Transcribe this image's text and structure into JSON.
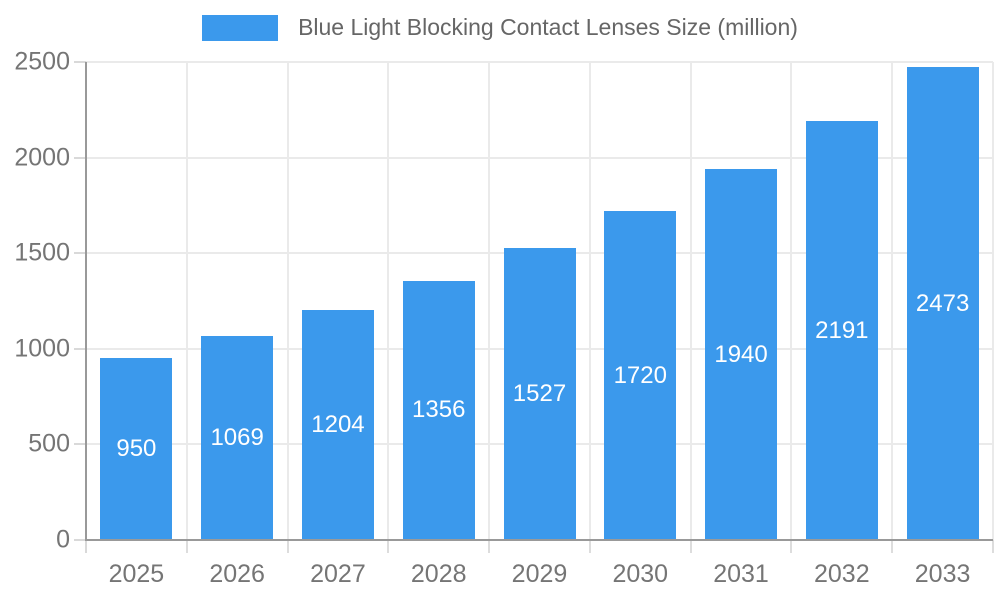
{
  "legend": {
    "label": "Blue Light Blocking Contact Lenses Size (million)"
  },
  "chart_data": {
    "type": "bar",
    "title": "Blue Light Blocking Contact Lenses Size (million)",
    "categories": [
      "2025",
      "2026",
      "2027",
      "2028",
      "2029",
      "2030",
      "2031",
      "2032",
      "2033"
    ],
    "values": [
      950,
      1069,
      1204,
      1356,
      1527,
      1720,
      1940,
      2191,
      2473
    ],
    "xlabel": "",
    "ylabel": "",
    "ylim": [
      0,
      2500
    ],
    "yticks": [
      0,
      500,
      1000,
      1500,
      2000,
      2500
    ],
    "grid": true,
    "legend_position": "top-center",
    "colors": {
      "bar": "#3B99EC",
      "bar_value_label": "#ffffff",
      "axis": "#999999",
      "gridline": "#eaeaea",
      "tick": "#d9d9d9",
      "axis_label": "#757575",
      "legend_text": "#666666"
    }
  }
}
